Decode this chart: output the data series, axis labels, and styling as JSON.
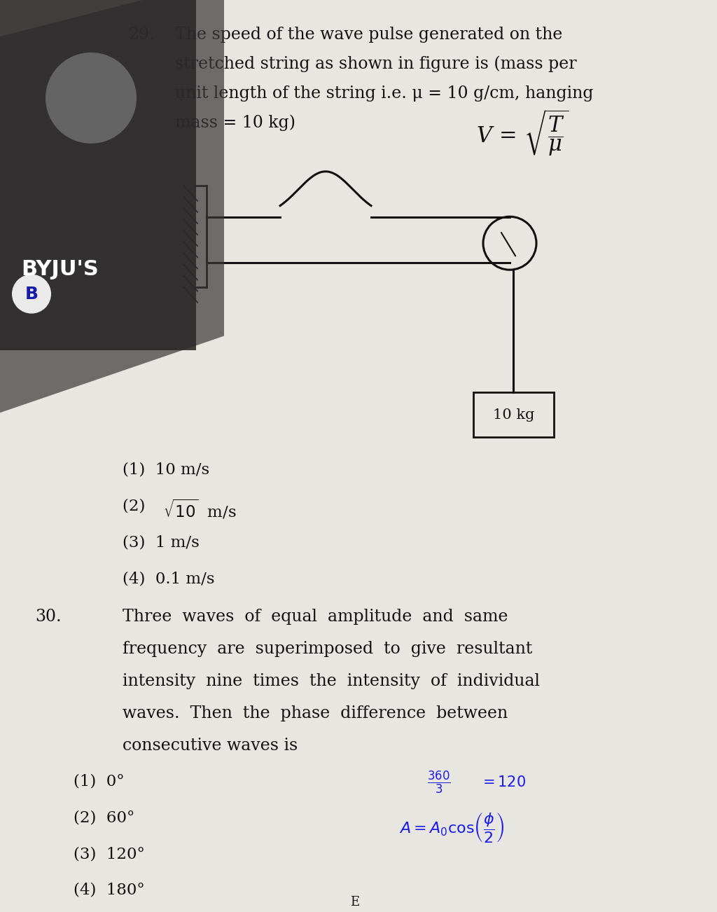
{
  "bg_color": "#e8e6e0",
  "text_color": "#111111",
  "q29_number": "29.",
  "q29_text_line1": "The speed of the wave pulse generated on the",
  "q29_text_line2": "stretched string as shown in figure is (mass per",
  "q29_text_line3": "unit length of the string i.e. μ = 10 g/cm, hanging",
  "q29_text_line4": "mass = 10 kg)",
  "q29_options_1": "(1)  10 m/s",
  "q29_options_2": "(2)  √10 m/s",
  "q29_options_3": "(3)  1 m/s",
  "q29_options_4": "(4)  0.1 m/s",
  "q30_number": "30.",
  "q30_text_line1": "Three  waves  of  equal  amplitude  and  same",
  "q30_text_line2": "frequency  are  superimposed  to  give  resultant",
  "q30_text_line3": "intensity  nine  times  the  intensity  of  individual",
  "q30_text_line4": "waves.  Then  the  phase  difference  between",
  "q30_text_line5": "consecutive waves is",
  "q30_opt1": "(1)  0°",
  "q30_opt2": "(2)  60°",
  "q30_opt3": "(3)  120°",
  "q30_opt4": "(4)  180°",
  "annot_color": "#1a1aee",
  "font_size_body": 17,
  "font_size_options": 16.5,
  "font_size_small": 13
}
